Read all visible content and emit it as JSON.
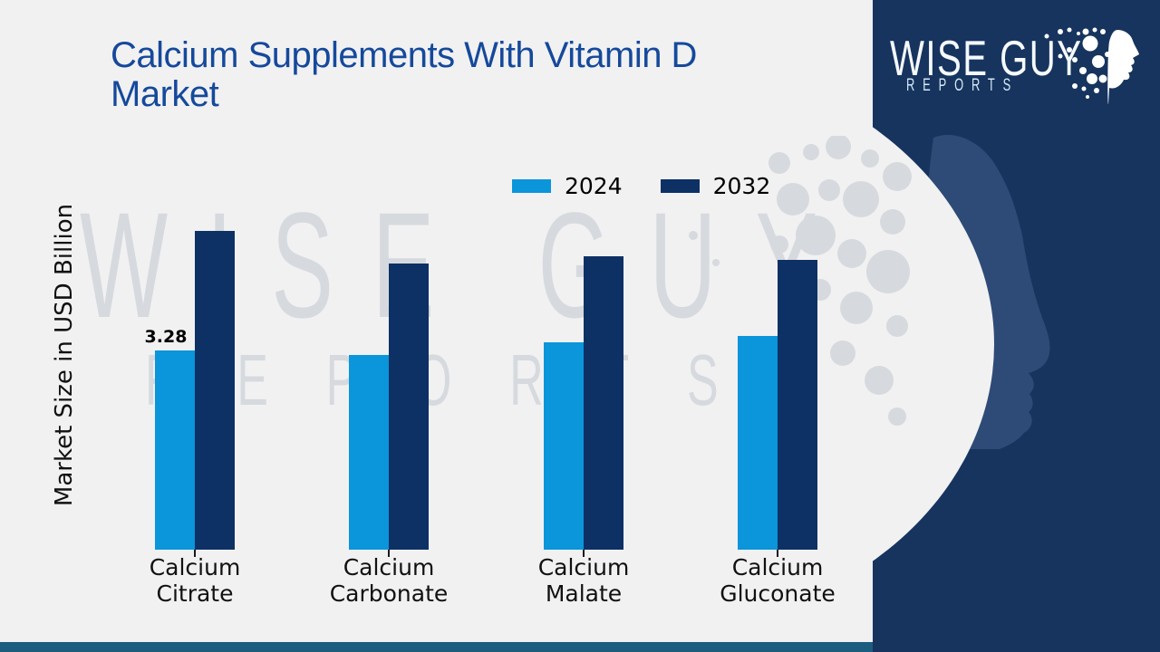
{
  "header": {
    "title": "Calcium Supplements With Vitamin D Market",
    "title_lines": [
      "Calcium Supplements With Vitamin D",
      "Market"
    ],
    "title_color": "#15499b"
  },
  "logo": {
    "brand_line1": "WISE GUY",
    "brand_line2": "REPORTS",
    "panel_color": "#16345e",
    "face_silhouette_color": "#2e4b77"
  },
  "watermark": {
    "line1": "WISE GUY",
    "line2": "REPORTS",
    "color": "#d6dade"
  },
  "footer": {
    "accent_bar_color": "#1b5d7e"
  },
  "chart_data": {
    "type": "bar",
    "title": "Calcium Supplements With Vitamin D Market",
    "xlabel": "",
    "ylabel": "Market Size in USD Billion",
    "categories": [
      "Calcium Citrate",
      "Calcium Carbonate",
      "Calcium Malate",
      "Calcium Gluconate"
    ],
    "series": [
      {
        "name": "2024",
        "color": "#0b95da",
        "values": [
          3.28,
          3.21,
          3.41,
          3.52
        ],
        "labels": [
          "3.28",
          "",
          "",
          ""
        ]
      },
      {
        "name": "2032",
        "color": "#0d3164",
        "values": [
          5.25,
          4.71,
          4.83,
          4.77
        ],
        "labels": [
          "",
          "",
          "",
          ""
        ]
      }
    ],
    "ylim": [
      0,
      5.8
    ],
    "grid": false,
    "y_axis_ticks_visible": false,
    "legend_position": "top-center"
  }
}
